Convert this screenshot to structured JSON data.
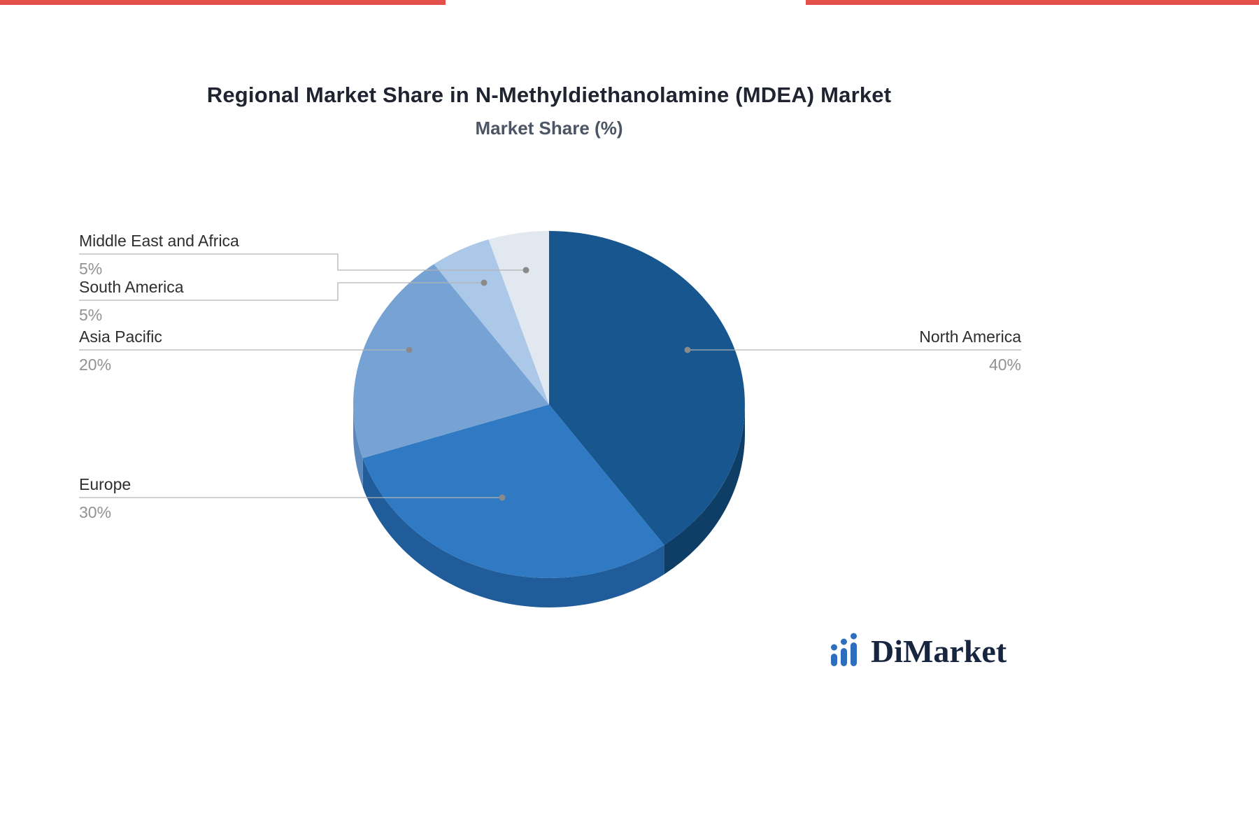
{
  "header": {
    "title": "Regional Market Share in N-Methyldiethanolamine (MDEA) Market",
    "subtitle": "Market Share (%)"
  },
  "chart_data": {
    "type": "pie",
    "title": "Regional Market Share in N-Methyldiethanolamine (MDEA) Market",
    "subtitle": "Market Share (%)",
    "unit": "%",
    "labels": [
      "North America",
      "Europe",
      "Asia Pacific",
      "South America",
      "Middle East and Africa"
    ],
    "values": [
      40,
      30,
      20,
      5,
      5
    ],
    "display_values": [
      "40%",
      "30%",
      "20%",
      "5%",
      "5%"
    ],
    "colors": [
      "#17568f",
      "#2f7ac2",
      "#76a3d4",
      "#abc8e8",
      "#e2e8f0"
    ],
    "side_colors": [
      "#0e3d66",
      "#1f5c99",
      "#5a88bd",
      "#8fb3d9",
      "#c3ccd9"
    ],
    "start_angle_deg": 0,
    "direction": "clockwise",
    "style": "3d-pie",
    "legend_position": "none",
    "label_style": "leader-lines",
    "label_name_color": "#2e2e2e",
    "label_value_color": "#929292",
    "leader_line_color": "#b3b3b3",
    "leader_dot_color": "#8a8a8a"
  },
  "watermark": {
    "text": "DiMarket",
    "icon": "bar-chart-icon",
    "icon_color": "#2e6fbd",
    "text_color": "#17253f"
  },
  "decor": {
    "top_bar_color": "#e4504b"
  }
}
